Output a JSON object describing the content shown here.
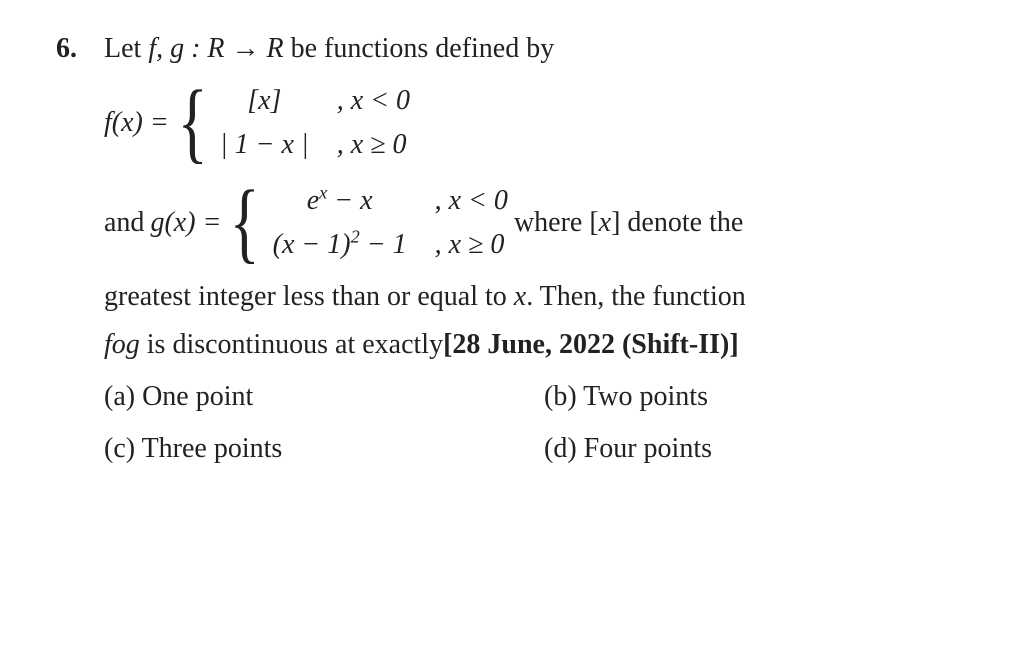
{
  "question": {
    "number": "6.",
    "intro_pre": "Let ",
    "intro_fns": "f, g : R → R",
    "intro_post": " be functions defined by",
    "f_lhs_var": "f",
    "f_lhs_of": "(x) = ",
    "f_pieces": {
      "r1_expr": "[x]",
      "r1_cond": ",   x < 0",
      "r2_expr": "| 1 − x |",
      "r2_cond": ",   x ≥ 0"
    },
    "g_pre": "and ",
    "g_lhs_var": "g",
    "g_lhs_of": "(x) = ",
    "g_pieces": {
      "r1_expr_html": "e<sup class=\"sup-x\">x</sup> − <span class=\"italic\">x</span>",
      "r1_cond": ",   x < 0",
      "r2_expr_html": "(<span class=\"italic\">x</span> − 1)<sup>2</sup> − 1",
      "r2_cond": ",   x ≥ 0"
    },
    "g_tail_pre": " where [",
    "g_tail_var": "x",
    "g_tail_post": "] denote the",
    "para2_a": "greatest integer less than or equal to ",
    "para2_var": "x",
    "para2_b": ". Then, the function",
    "para3_fog": "fog",
    "para3_rest": " is discontinuous at exactly",
    "tag": "[28 June, 2022 (Shift-II)]",
    "options": {
      "a": "(a)  One point",
      "b": "(b)  Two points",
      "c": "(c)  Three points",
      "d": "(d)  Four points"
    }
  },
  "style": {
    "text_color": "#222222",
    "background": "#ffffff",
    "font_family": "Times New Roman",
    "base_fontsize_pt": 21
  }
}
